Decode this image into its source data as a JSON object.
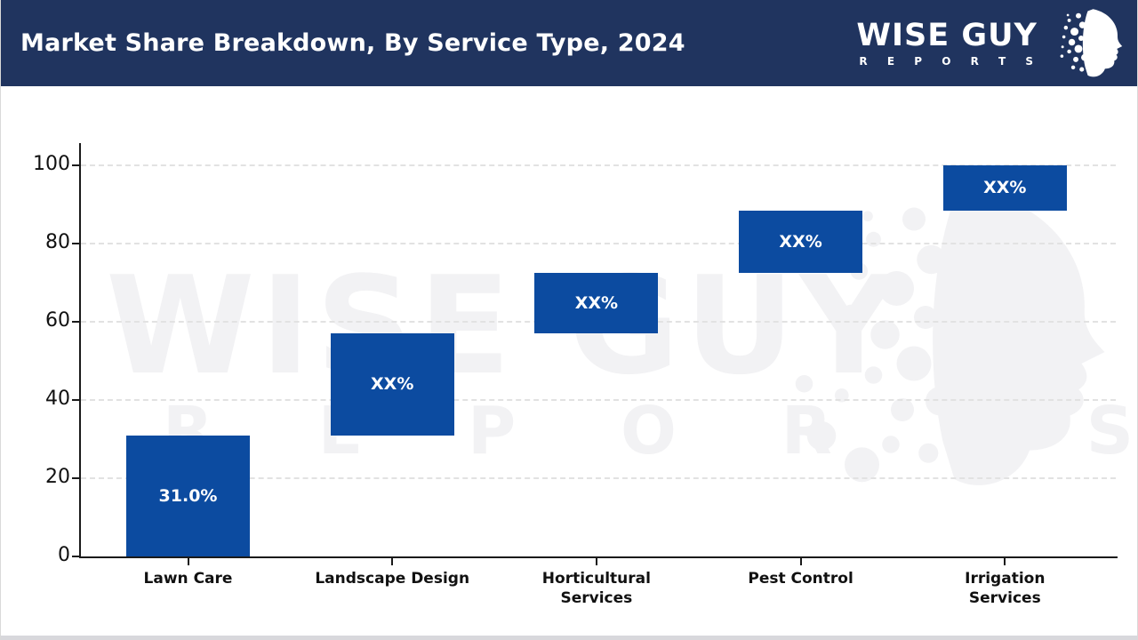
{
  "header": {
    "title": "Market Share Breakdown, By Service Type, 2024",
    "background": "#20345f",
    "logo": {
      "line1": "WISE GUY",
      "line2": "R E P O R T S"
    }
  },
  "watermark": {
    "line1": "WISE GUY",
    "line2": "R E P O R T S"
  },
  "footer": {
    "strip_color": "#d8d8dc"
  },
  "chart_data": {
    "type": "bar",
    "subtype": "waterfall",
    "title": "Market Share Breakdown, By Service Type, 2024",
    "categories": [
      "Lawn Care",
      "Landscape Design",
      "Horticultural\nServices",
      "Pest Control",
      "Irrigation\nServices"
    ],
    "segments": [
      {
        "category": "Lawn Care",
        "start": 0,
        "end": 31,
        "label": "31.0%"
      },
      {
        "category": "Landscape Design",
        "start": 31,
        "end": 57,
        "label": "XX%"
      },
      {
        "category": "Horticultural Services",
        "start": 57,
        "end": 72.5,
        "label": "XX%"
      },
      {
        "category": "Pest Control",
        "start": 72.5,
        "end": 88.5,
        "label": "XX%"
      },
      {
        "category": "Irrigation Services",
        "start": 88.5,
        "end": 100,
        "label": "XX%"
      }
    ],
    "xlabel": "",
    "ylabel": "",
    "ylim": [
      0,
      105
    ],
    "yticks": [
      0,
      20,
      40,
      60,
      80,
      100
    ],
    "grid": "horizontal-dashed",
    "legend": "none",
    "bar_color": "#0c4ba0",
    "bar_label_color": "#ffffff",
    "axis_color": "#1a1a1a"
  }
}
